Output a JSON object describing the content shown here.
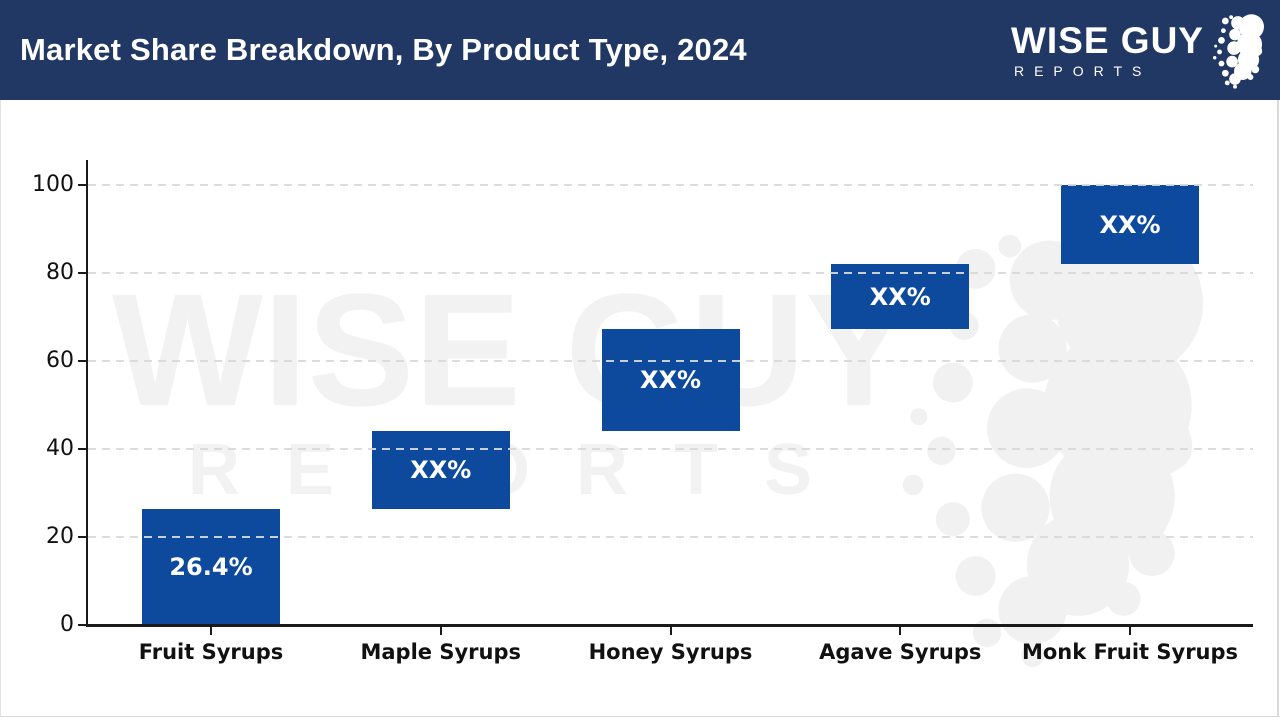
{
  "header": {
    "title": "Market Share Breakdown, By Product Type, 2024",
    "background_color": "#223864",
    "logo": {
      "line1": "WISE GUY",
      "line2": "REPORTS",
      "head_icon": "dotted-head-profile-icon"
    }
  },
  "watermark": {
    "line1": "WISE GUY",
    "line2": "REPORTS",
    "head_icon": "dotted-head-profile-icon",
    "color": "#f2f2f2"
  },
  "chart_data": {
    "type": "bar",
    "subtype": "waterfall",
    "title": "Market Share Breakdown, By Product Type, 2024",
    "xlabel": "",
    "ylabel": "",
    "categories": [
      "Fruit Syrups",
      "Maple Syrups",
      "Honey Syrups",
      "Agave Syrups",
      "Monk Fruit Syrups"
    ],
    "segments": [
      {
        "category": "Fruit Syrups",
        "from": 0,
        "to": 26.4,
        "label": "26.4%"
      },
      {
        "category": "Maple Syrups",
        "from": 26.4,
        "to": 44.2,
        "label": "XX%"
      },
      {
        "category": "Honey Syrups",
        "from": 44.2,
        "to": 67.3,
        "label": "XX%"
      },
      {
        "category": "Agave Syrups",
        "from": 67.3,
        "to": 82.0,
        "label": "XX%"
      },
      {
        "category": "Monk Fruit Syrups",
        "from": 82.0,
        "to": 100.0,
        "label": "XX%"
      }
    ],
    "yticks": [
      0,
      20,
      40,
      60,
      80,
      100
    ],
    "ylim": [
      0,
      105
    ],
    "grid": "horizontal dashed, drawn over bars",
    "legend": "none",
    "bar_color": "#0d4a9e",
    "bar_label_color": "#ffffff",
    "grid_color": "#d9d9d9",
    "axis_color": "#1a1a1a"
  }
}
